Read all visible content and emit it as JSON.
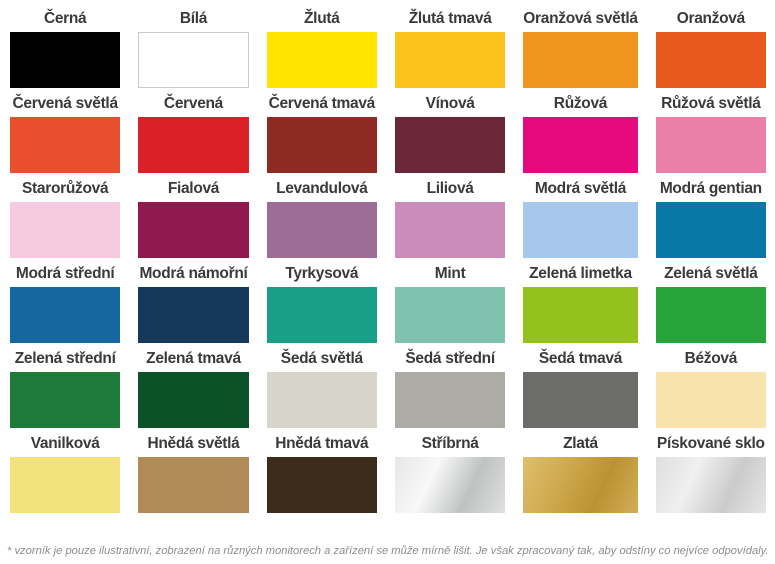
{
  "chart_data": {
    "type": "table",
    "description": "Color swatch sample chart (vzornik barev), 6 columns x 6 rows, label above each color tile",
    "columns": [
      "label",
      "color"
    ],
    "swatches": [
      {
        "label": "Černá",
        "color": "#000000"
      },
      {
        "label": "Bílá",
        "color": "#ffffff",
        "border": "#c9c9c9"
      },
      {
        "label": "Žlutá",
        "color": "#ffe500"
      },
      {
        "label": "Žlutá tmavá",
        "color": "#fcc31d"
      },
      {
        "label": "Oranžová světlá",
        "color": "#f0931f"
      },
      {
        "label": "Oranžová",
        "color": "#e7591f"
      },
      {
        "label": "Červená světlá",
        "color": "#e84f2e"
      },
      {
        "label": "Červená",
        "color": "#da2128"
      },
      {
        "label": "Červená tmavá",
        "color": "#8e2a22"
      },
      {
        "label": "Vínová",
        "color": "#6c2738"
      },
      {
        "label": "Růžová",
        "color": "#e50a7e"
      },
      {
        "label": "Růžová světlá",
        "color": "#ea80a8"
      },
      {
        "label": "Starorůžová",
        "color": "#f6cbe1"
      },
      {
        "label": "Fialová",
        "color": "#91194f"
      },
      {
        "label": "Levandulová",
        "color": "#9d6c97"
      },
      {
        "label": "Liliová",
        "color": "#c98cbb"
      },
      {
        "label": "Modrá světlá",
        "color": "#a5c8ec"
      },
      {
        "label": "Modrá gentian",
        "color": "#0878a8"
      },
      {
        "label": "Modrá střední",
        "color": "#14689f"
      },
      {
        "label": "Modrá námořní",
        "color": "#15395b"
      },
      {
        "label": "Tyrkysová",
        "color": "#199e8a"
      },
      {
        "label": "Mint",
        "color": "#7fc2ae"
      },
      {
        "label": "Zelená limetka",
        "color": "#95c11f"
      },
      {
        "label": "Zelená světlá",
        "color": "#29a43a"
      },
      {
        "label": "Zelená střední",
        "color": "#1e7a38"
      },
      {
        "label": "Zelená tmavá",
        "color": "#0b5226"
      },
      {
        "label": "Šedá světlá",
        "color": "#d7d4cb"
      },
      {
        "label": "Šedá střední",
        "color": "#adaca4"
      },
      {
        "label": "Šedá tmavá",
        "color": "#6c6c6a"
      },
      {
        "label": "Béžová",
        "color": "#f7e3ab"
      },
      {
        "label": "Vanilková",
        "color": "#f2e17c"
      },
      {
        "label": "Hnědá světlá",
        "color": "#b18b55"
      },
      {
        "label": "Hnědá tmavá",
        "color": "#3c2d1b"
      },
      {
        "label": "Stříbrná",
        "color": "#c9cbcb",
        "finish": "metallic",
        "angle": 115,
        "gradient": [
          "#e6e7e7",
          "#f8f8f8",
          "#c0c2c2",
          "#dfe0e0"
        ]
      },
      {
        "label": "Zlatá",
        "color": "#c9a448",
        "finish": "metallic",
        "angle": 115,
        "gradient": [
          "#ddbf6d",
          "#d0aa4f",
          "#bb9233",
          "#d3ae57"
        ]
      },
      {
        "label": "Pískované sklo",
        "color": "#dedede",
        "finish": "frosted",
        "angle": 115,
        "gradient": [
          "#dedede",
          "#f0f0f0",
          "#cbcbcb",
          "#e6e6e6"
        ]
      }
    ]
  },
  "footnote": "* vzorník je pouze ilustrativní, zobrazení na různých monitorech a zařízení se může mírně lišit. Je však zpracovaný tak, aby odstíny co nejvíce odpovídaly.",
  "text_color": "#3a3a39"
}
